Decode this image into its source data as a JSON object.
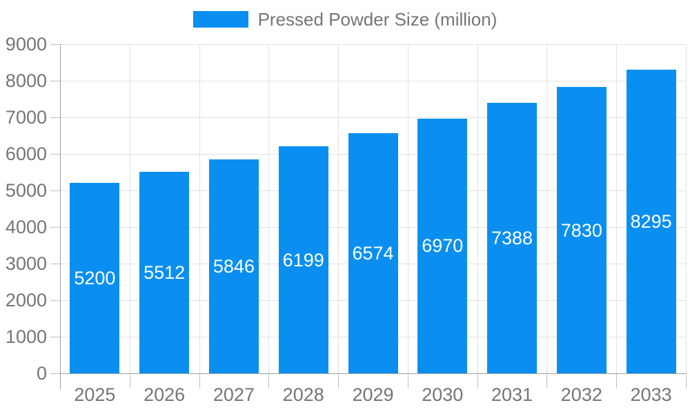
{
  "legend": {
    "label": "Pressed Powder Size (million)"
  },
  "chart_data": {
    "type": "bar",
    "title": "Pressed Powder Size (million)",
    "categories": [
      "2025",
      "2026",
      "2027",
      "2028",
      "2029",
      "2030",
      "2031",
      "2032",
      "2033"
    ],
    "series": [
      {
        "name": "Pressed Powder Size (million)",
        "values": [
          5200,
          5512,
          5846,
          6199,
          6574,
          6970,
          7388,
          7830,
          8295
        ]
      }
    ],
    "value_labels_shown": true,
    "xlabel": "",
    "ylabel": "",
    "ylim": [
      0,
      9000
    ],
    "ytick_step": 1000,
    "yticks": [
      0,
      1000,
      2000,
      3000,
      4000,
      5000,
      6000,
      7000,
      8000,
      9000
    ],
    "grid": true,
    "legend_position": "top-center",
    "colors": {
      "bar": "#0a8ff0",
      "bar_value_text": "#ffffff",
      "axis_text": "#757575",
      "grid_line": "#e2e2e2",
      "tick_line": "#c0c0c0",
      "axis_line": "#9e9e9e",
      "background": "#ffffff"
    }
  }
}
